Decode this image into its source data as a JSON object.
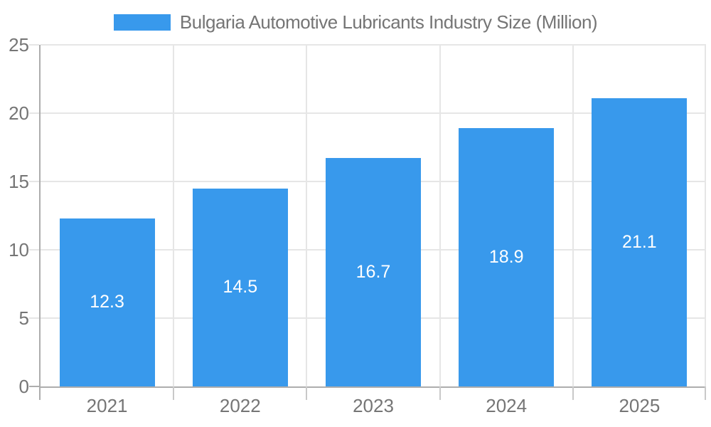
{
  "chart_data": {
    "type": "bar",
    "title": "Bulgaria Automotive Lubricants Industry Size (Million)",
    "categories": [
      "2021",
      "2022",
      "2023",
      "2024",
      "2025"
    ],
    "values": [
      12.3,
      14.5,
      16.7,
      18.9,
      21.1
    ],
    "value_labels": [
      "12.3",
      "14.5",
      "16.7",
      "18.9",
      "21.1"
    ],
    "xlabel": "",
    "ylabel": "",
    "ylim": [
      0,
      25
    ],
    "yticks": [
      0,
      5,
      10,
      15,
      20,
      25
    ],
    "grid": true,
    "legend_position": "top",
    "colors": {
      "bar": "#3899ec",
      "bar_label": "#ffffff",
      "axis_text": "#757575",
      "gridline": "#e6e6e6",
      "axis_line": "#adadad",
      "tick_mark": "#c9c9c9",
      "background": "#ffffff"
    }
  }
}
